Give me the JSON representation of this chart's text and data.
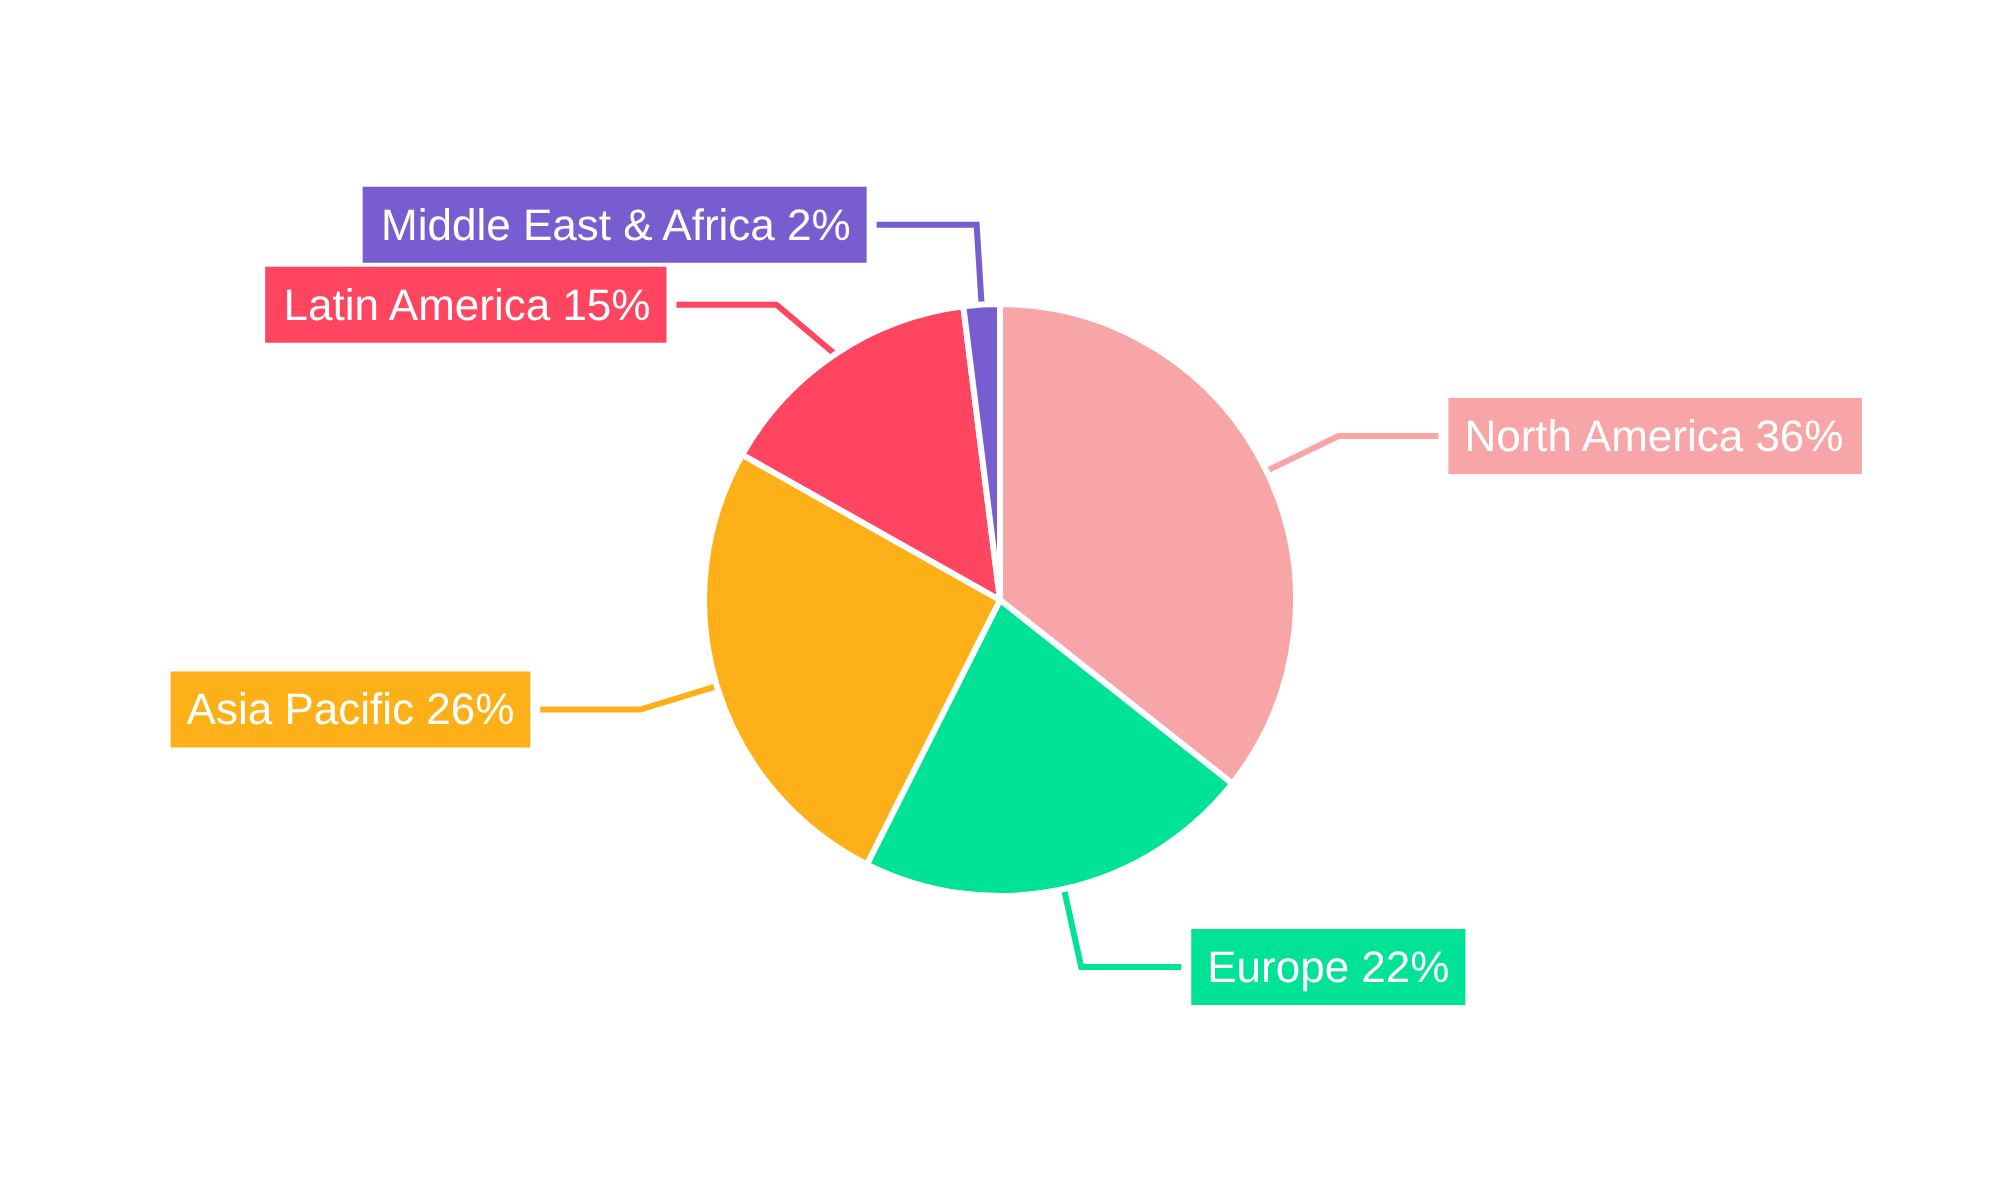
{
  "chart_data": {
    "type": "pie",
    "categories": [
      "North America",
      "Europe",
      "Asia Pacific",
      "Latin America",
      "Middle East & Africa"
    ],
    "values": [
      36,
      22,
      26,
      15,
      2
    ],
    "value_labels": [
      "36%",
      "22%",
      "26%",
      "15%",
      "2%"
    ],
    "colors": [
      "#f8a5a8",
      "#00e396",
      "#feb019",
      "#ff4560",
      "#775dd0"
    ],
    "legend": false
  }
}
